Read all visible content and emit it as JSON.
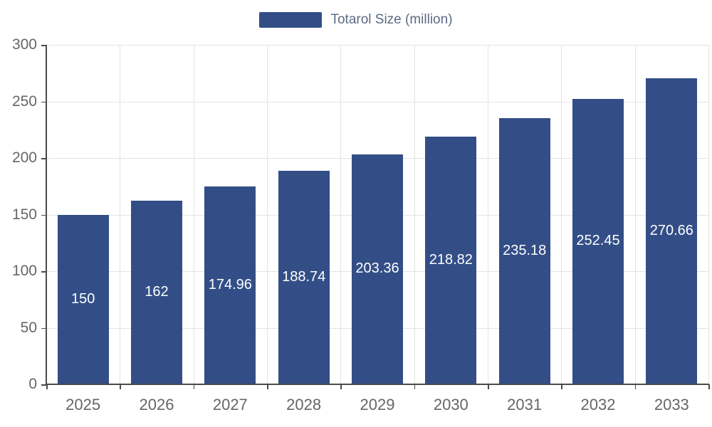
{
  "chart_data": {
    "type": "bar",
    "title": "",
    "legend": "Totarol Size (million)",
    "categories": [
      "2025",
      "2026",
      "2027",
      "2028",
      "2029",
      "2030",
      "2031",
      "2032",
      "2033"
    ],
    "values": [
      150,
      162,
      174.96,
      188.74,
      203.36,
      218.82,
      235.18,
      252.45,
      270.66
    ],
    "value_labels": [
      "150",
      "162",
      "174.96",
      "188.74",
      "203.36",
      "218.82",
      "235.18",
      "252.45",
      "270.66"
    ],
    "xlabel": "",
    "ylabel": "",
    "ylim": [
      0,
      300
    ],
    "yticks": [
      0,
      50,
      100,
      150,
      200,
      250,
      300
    ],
    "grid": true,
    "legend_position": "top"
  },
  "colors": {
    "bar": "#334e87",
    "bar_label_text": "#ffffff",
    "axis_line": "#4a4a4a",
    "grid_line": "#e3e3e3",
    "tick_text": "#666666",
    "legend_text": "#5b6b84",
    "background": "#ffffff"
  }
}
